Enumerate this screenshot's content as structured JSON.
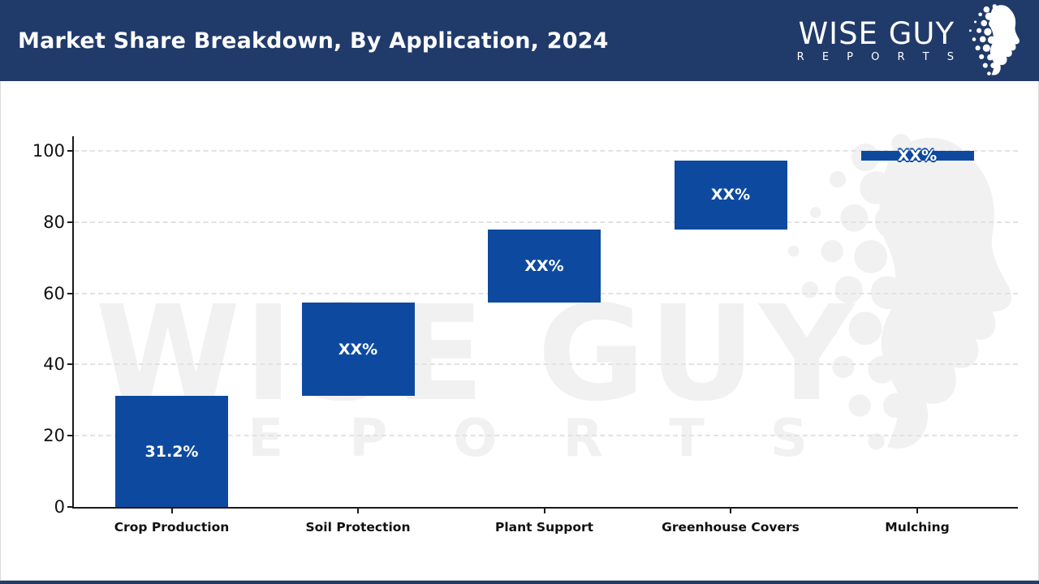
{
  "header": {
    "title": "Market Share Breakdown, By Application, 2024",
    "logo": {
      "line1": "WISE GUY",
      "line2": "R E P O R T S",
      "face_icon": "face-profile-dots-icon"
    }
  },
  "watermark": {
    "line1": "WISE GUY",
    "line2": "R E P O R T S",
    "face_icon": "face-profile-dots-icon"
  },
  "colors": {
    "header_bg": "#203a6a",
    "footer_bg": "#203a6a",
    "bar": "#0d4a9f",
    "bar_label": "#ffffff",
    "grid": "#e2e2e2",
    "axis": "#1a1a1a",
    "tick_text": "#111111",
    "title_text": "#ffffff",
    "watermark": "#f1f1f2"
  },
  "chart_data": {
    "type": "bar",
    "subtype": "floating-waterfall",
    "title": "Market Share Breakdown, By Application, 2024",
    "categories": [
      "Crop Production",
      "Soil Protection",
      "Plant Support",
      "Greenhouse Covers",
      "Mulching"
    ],
    "series": [
      {
        "name": "Market Share %",
        "segments": [
          {
            "category": "Crop Production",
            "start": 0,
            "end": 31.2,
            "label": "31.2%"
          },
          {
            "category": "Soil Protection",
            "start": 31.2,
            "end": 57.3,
            "label": "XX%"
          },
          {
            "category": "Plant Support",
            "start": 57.3,
            "end": 78.0,
            "label": "XX%"
          },
          {
            "category": "Greenhouse Covers",
            "start": 78.0,
            "end": 97.3,
            "label": "XX%"
          },
          {
            "category": "Mulching",
            "start": 97.3,
            "end": 100,
            "label": "XX%"
          }
        ]
      }
    ],
    "xlabel": "",
    "ylabel": "",
    "ylim": [
      0,
      100
    ],
    "yticks": [
      0,
      20,
      40,
      60,
      80,
      100
    ],
    "grid": "horizontal-dashed",
    "legend": "none"
  }
}
